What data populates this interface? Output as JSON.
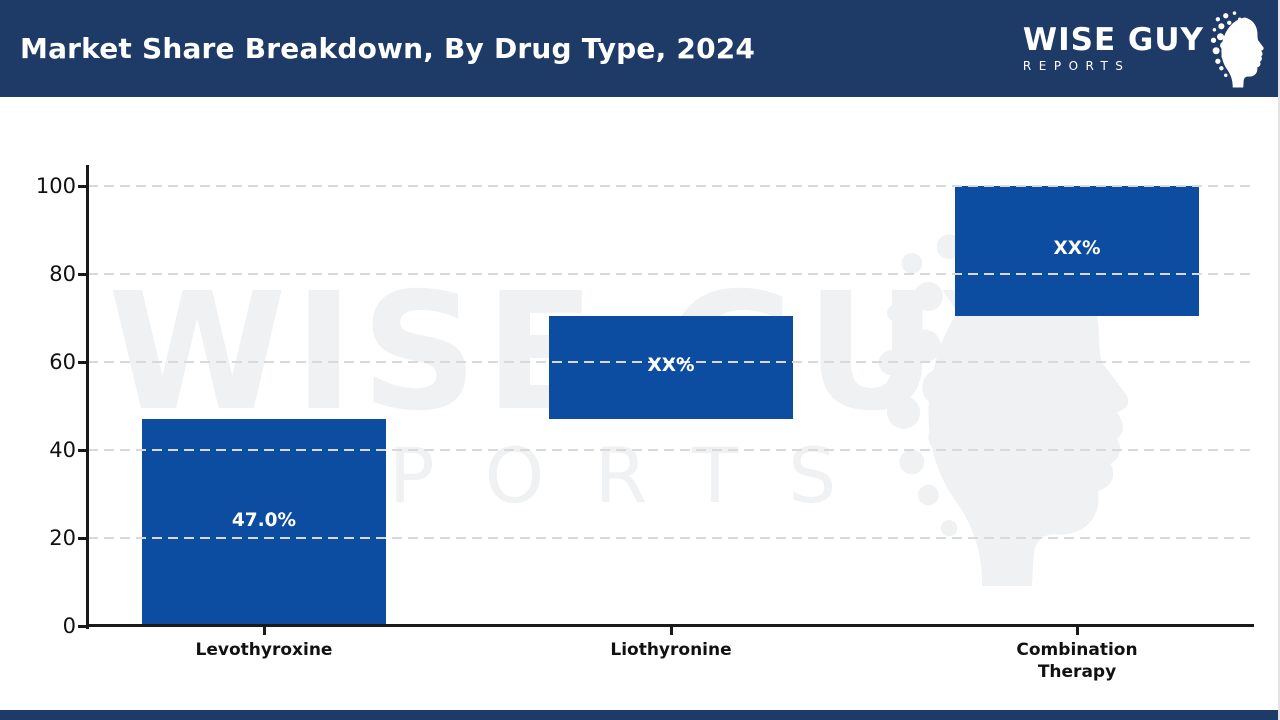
{
  "header": {
    "title": "Market Share Breakdown, By Drug Type, 2024",
    "logo": {
      "primary": "WISE GUY",
      "secondary": "REPORTS"
    }
  },
  "watermark": {
    "primary": "WISE GUY",
    "secondary": "REPORTS"
  },
  "colors": {
    "header_bg": "#1e3a67",
    "bar": "#0c4da2",
    "grid": "#d9d9d9",
    "axis": "#1a1a1a",
    "label_on_bar": "#ffffff",
    "watermark": "#f0f1f3",
    "footer_bg": "#1e3a67"
  },
  "chart_data": {
    "type": "bar",
    "variant": "waterfall",
    "title": "Market Share Breakdown, By Drug Type, 2024",
    "categories": [
      "Levothyroxine",
      "Liothyronine",
      "Combination Therapy"
    ],
    "bars": [
      {
        "category": "Levothyroxine",
        "from": 0,
        "to": 47,
        "label": "47.0%"
      },
      {
        "category": "Liothyronine",
        "from": 47,
        "to": 70.5,
        "label": "XX%"
      },
      {
        "category": "Combination Therapy",
        "from": 70.5,
        "to": 100,
        "label": "XX%"
      }
    ],
    "xlabel": "",
    "ylabel": "",
    "ylim": [
      0,
      100
    ],
    "yticks": [
      0,
      20,
      40,
      60,
      80,
      100
    ],
    "grid": "horizontal-dashed",
    "legend": null
  }
}
